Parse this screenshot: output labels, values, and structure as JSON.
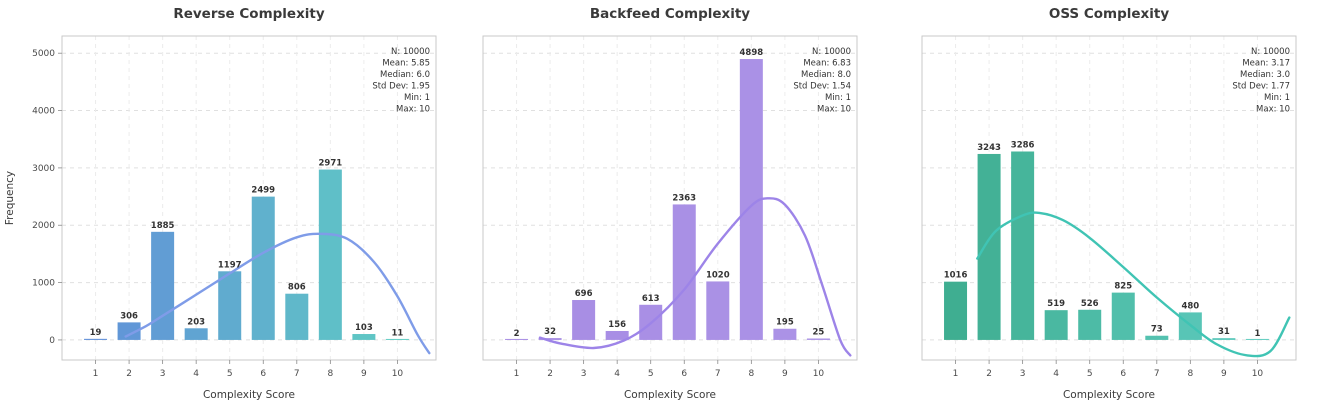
{
  "chart_data": [
    {
      "type": "bar",
      "title": "Reverse Complexity",
      "xlabel": "Complexity Score",
      "ylabel": "Frequency",
      "categories": [
        "1",
        "2",
        "3",
        "4",
        "5",
        "6",
        "7",
        "8",
        "9",
        "10"
      ],
      "values": [
        19,
        306,
        1885,
        203,
        1197,
        2499,
        806,
        2971,
        103,
        11
      ],
      "y_ticks": [
        0,
        1000,
        2000,
        3000,
        4000,
        5000
      ],
      "y_ticks_visible": true,
      "ylim": [
        -350,
        5300
      ],
      "grid": "dashed",
      "legend": "none",
      "stats_lines": [
        "N: 10000",
        "Mean: 5.85",
        "Median: 6.0",
        "Std Dev: 1.95",
        "Min: 1",
        "Max: 10"
      ],
      "colors": {
        "bar_start": "#6190d9",
        "bar_end": "#5fccc3",
        "curve": "#7f9ce8"
      },
      "curve_points": [
        [
          1.9,
          60
        ],
        [
          2.5,
          240
        ],
        [
          3,
          420
        ],
        [
          4,
          790
        ],
        [
          5,
          1160
        ],
        [
          6,
          1520
        ],
        [
          7,
          1790
        ],
        [
          7.7,
          1850
        ],
        [
          8.5,
          1765
        ],
        [
          9.3,
          1360
        ],
        [
          10,
          760
        ],
        [
          10.6,
          90
        ],
        [
          10.95,
          -230
        ]
      ]
    },
    {
      "type": "bar",
      "title": "Backfeed Complexity",
      "xlabel": "Complexity Score",
      "ylabel": "",
      "categories": [
        "1",
        "2",
        "3",
        "4",
        "5",
        "6",
        "7",
        "8",
        "9",
        "10"
      ],
      "values": [
        2,
        32,
        696,
        156,
        613,
        2363,
        1020,
        4898,
        195,
        25
      ],
      "y_ticks": [
        0,
        1000,
        2000,
        3000,
        4000,
        5000
      ],
      "y_ticks_visible": false,
      "ylim": [
        -350,
        5300
      ],
      "grid": "dashed",
      "legend": "none",
      "stats_lines": [
        "N: 10000",
        "Mean: 6.83",
        "Median: 8.0",
        "Std Dev: 1.54",
        "Min: 1",
        "Max: 10"
      ],
      "colors": {
        "bar_start": "#a78ce4",
        "bar_end": "#ab93e6",
        "curve": "#9d84e8"
      },
      "curve_points": [
        [
          1.7,
          40
        ],
        [
          2.3,
          -60
        ],
        [
          3.3,
          -140
        ],
        [
          4.2,
          -10
        ],
        [
          5,
          290
        ],
        [
          6,
          880
        ],
        [
          7,
          1680
        ],
        [
          8,
          2340
        ],
        [
          8.5,
          2470
        ],
        [
          9,
          2360
        ],
        [
          9.6,
          1820
        ],
        [
          10.1,
          980
        ],
        [
          10.65,
          0
        ],
        [
          10.95,
          -270
        ]
      ]
    },
    {
      "type": "bar",
      "title": "OSS Complexity",
      "xlabel": "Complexity Score",
      "ylabel": "",
      "categories": [
        "1",
        "2",
        "3",
        "4",
        "5",
        "6",
        "7",
        "8",
        "9",
        "10"
      ],
      "values": [
        1016,
        3243,
        3286,
        519,
        526,
        825,
        73,
        480,
        31,
        1
      ],
      "y_ticks": [
        0,
        1000,
        2000,
        3000,
        4000,
        5000
      ],
      "y_ticks_visible": false,
      "ylim": [
        -350,
        5300
      ],
      "grid": "dashed",
      "legend": "none",
      "stats_lines": [
        "N: 10000",
        "Mean: 3.17",
        "Median: 3.0",
        "Std Dev: 1.77",
        "Min: 1",
        "Max: 10"
      ],
      "colors": {
        "bar_start": "#3fae91",
        "bar_end": "#5fccc0",
        "curve": "#40c4b4"
      },
      "curve_points": [
        [
          1.65,
          1420
        ],
        [
          2.2,
          1900
        ],
        [
          3,
          2170
        ],
        [
          3.5,
          2215
        ],
        [
          4.2,
          2090
        ],
        [
          5,
          1780
        ],
        [
          6,
          1270
        ],
        [
          7,
          740
        ],
        [
          8,
          260
        ],
        [
          8.8,
          -80
        ],
        [
          9.7,
          -270
        ],
        [
          10.4,
          -190
        ],
        [
          10.95,
          390
        ]
      ]
    }
  ]
}
